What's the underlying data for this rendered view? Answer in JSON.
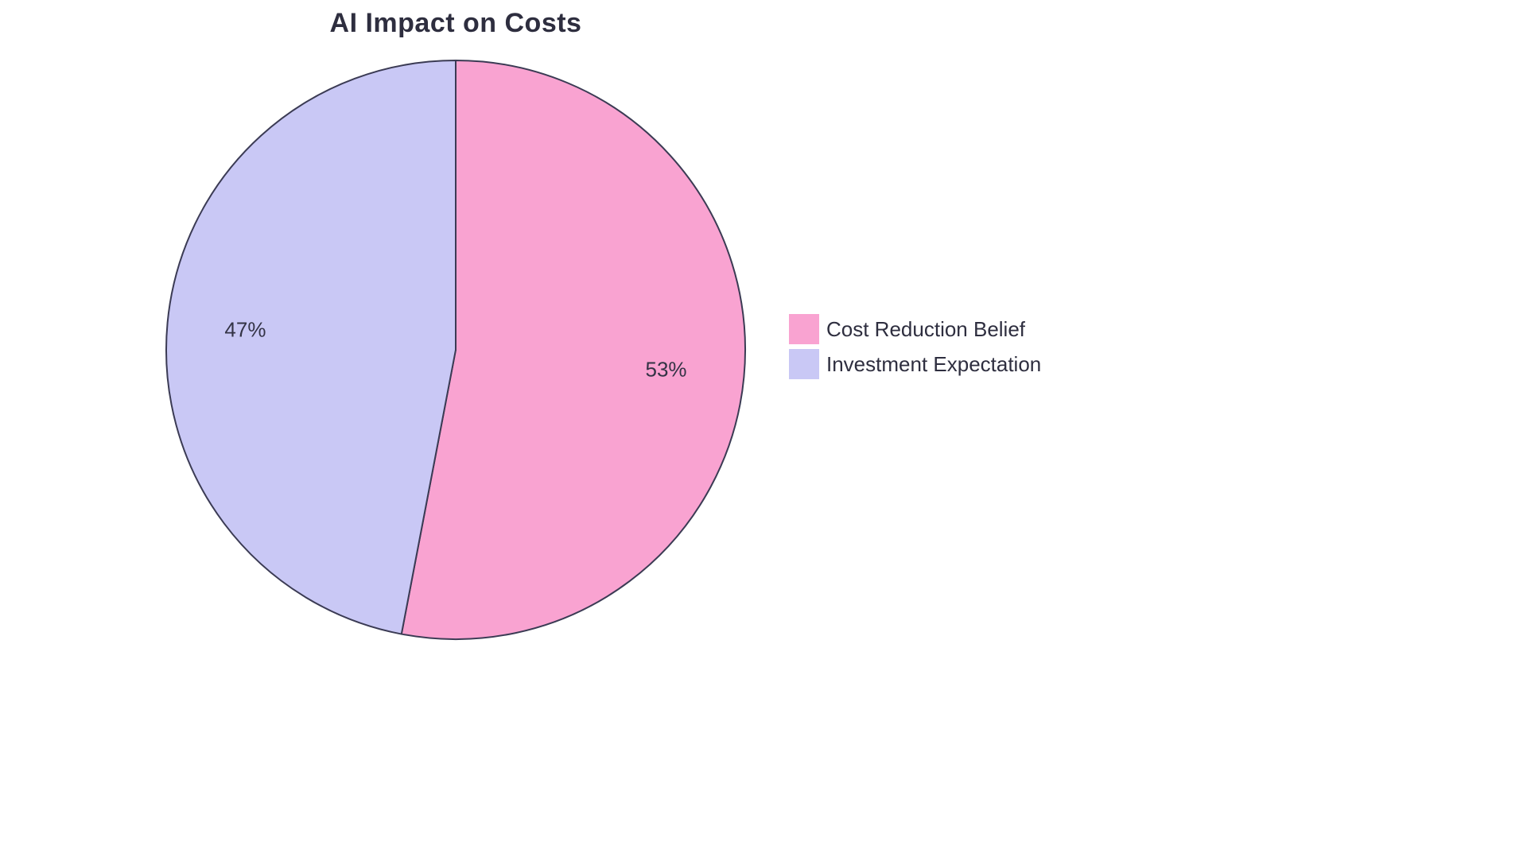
{
  "chart_data": {
    "type": "pie",
    "title": "AI Impact on Costs",
    "labels": [
      "Cost Reduction Belief",
      "Investment Expectation"
    ],
    "values": [
      53,
      47
    ],
    "percent_labels": [
      "53%",
      "47%"
    ],
    "colors": [
      "#F9A3D1",
      "#C9C8F5"
    ],
    "border_color": "#3b3b54",
    "start_angle_deg": 0,
    "direction": "clockwise",
    "legend_position": "right",
    "background": "#ffffff"
  }
}
